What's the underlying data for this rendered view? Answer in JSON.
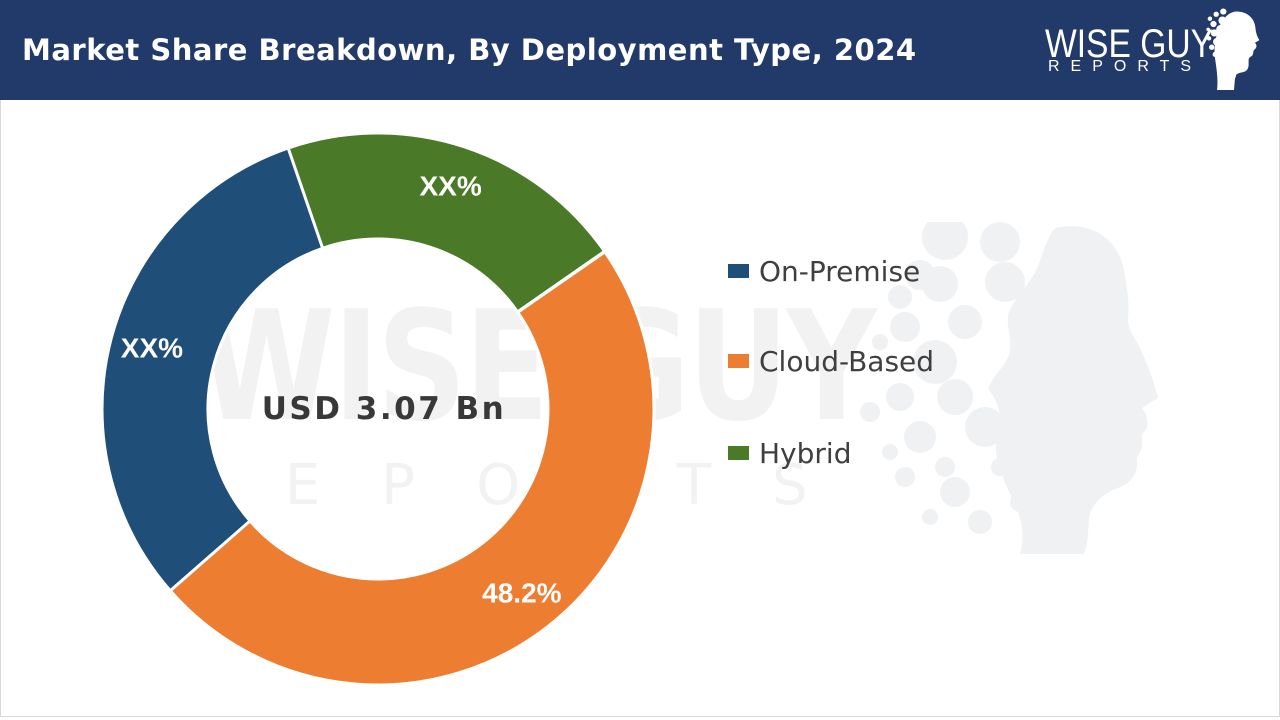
{
  "header": {
    "title": "Market Share Breakdown, By Deployment Type, 2024"
  },
  "logo": {
    "name": "WISE GUY",
    "subtitle": "REPORTS"
  },
  "watermark": {
    "line1": "WISE GUY",
    "line2": "REPORTS"
  },
  "chart_data": {
    "type": "pie",
    "subtype": "donut",
    "title": "Market Share Breakdown, By Deployment Type, 2024",
    "center_label": "USD 3.07 Bn",
    "legend_position": "right",
    "segments": [
      {
        "name": "On-Premise",
        "color": "#1f4e79",
        "value": 31.2,
        "label": "XX%",
        "start_deg": 228.8
      },
      {
        "name": "Cloud-Based",
        "color": "#ed7d31",
        "value": 48.2,
        "label": "48.2%",
        "start_deg": 55.3
      },
      {
        "name": "Hybrid",
        "color": "#4a7a28",
        "value": 20.6,
        "label": "XX%",
        "start_deg": 341.0
      }
    ]
  }
}
